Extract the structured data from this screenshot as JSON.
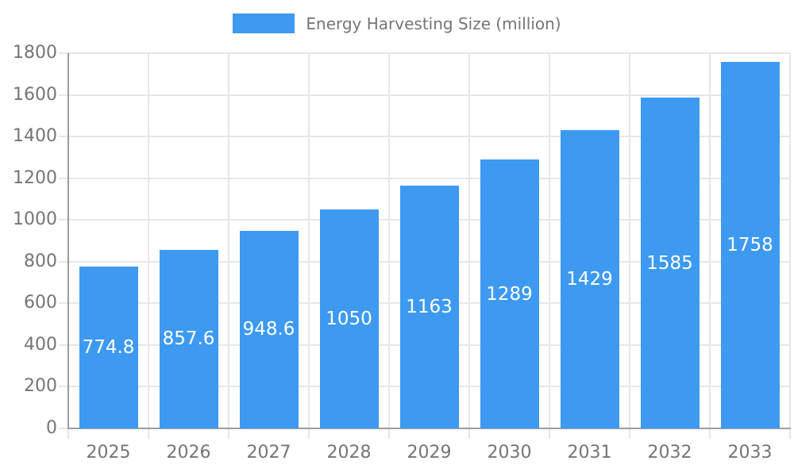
{
  "chart_data": {
    "type": "bar",
    "title": "",
    "legend": "Energy Harvesting Size (million)",
    "legend_position": "top",
    "categories": [
      "2025",
      "2026",
      "2027",
      "2028",
      "2029",
      "2030",
      "2031",
      "2032",
      "2033"
    ],
    "series": [
      {
        "name": "Energy Harvesting Size (million)",
        "values": [
          774.8,
          857.6,
          948.6,
          1050,
          1163,
          1289,
          1429,
          1585,
          1758
        ]
      }
    ],
    "value_labels": [
      "774.8",
      "857.6",
      "948.6",
      "1050",
      "1163",
      "1289",
      "1429",
      "1585",
      "1758"
    ],
    "xlabel": "",
    "ylabel": "",
    "ylim": [
      0,
      1800
    ],
    "ytick_step": 200,
    "ytick_labels": [
      "0",
      "200",
      "400",
      "600",
      "800",
      "1000",
      "1200",
      "1400",
      "1600",
      "1800"
    ],
    "grid": true,
    "colors": {
      "bar": "#3D9AF0",
      "grid": "#e6e6e6",
      "axis": "#9e9e9e",
      "tick_label": "#757575",
      "legend_label": "#757575",
      "value_label": "#ffffff",
      "background": "#ffffff"
    }
  }
}
